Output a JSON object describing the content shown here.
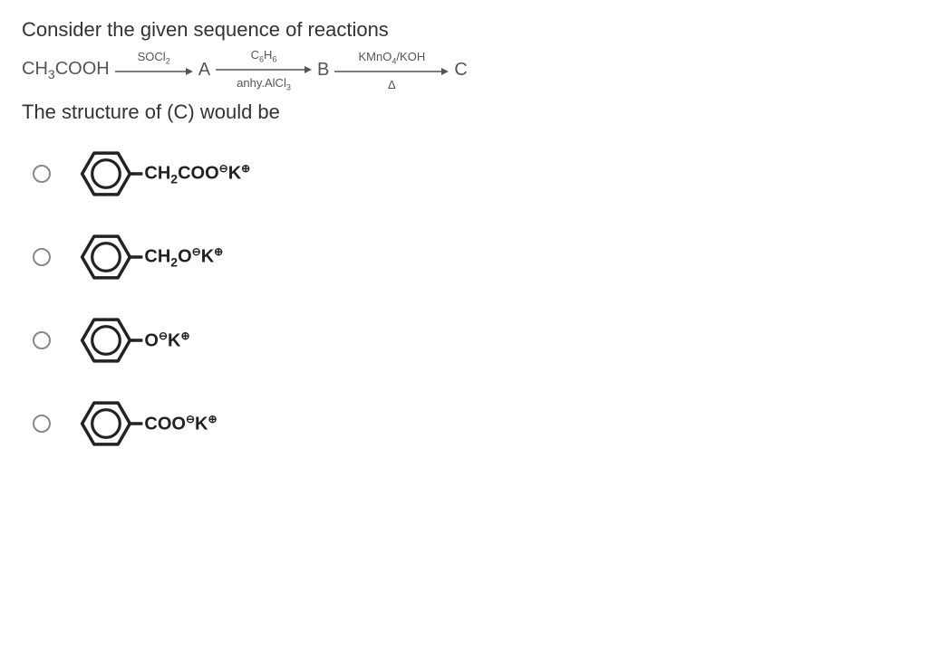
{
  "question": {
    "prompt_line1": "Consider the given sequence of reactions",
    "prompt_line2": "The structure of (C) would be"
  },
  "reaction": {
    "start_formula_html": "CH<span class='sub'>3</span>COOH",
    "steps": [
      {
        "top_html": "SOCl<span class='sub'>2</span>",
        "bottom_html": "",
        "product": "A",
        "arrow_width": 90
      },
      {
        "top_html": "C<span class='sub'>6</span>H<span class='sub'>6</span>",
        "bottom_html": "anhy.AlCl<span class='sub'>3</span>",
        "product": "B",
        "arrow_width": 110
      },
      {
        "top_html": "KMnO<span class='sub'>4</span>/KOH",
        "bottom_html": "Δ",
        "product": "C",
        "arrow_width": 130
      }
    ]
  },
  "benzene_style": {
    "size": 66,
    "hex_stroke": "#222222",
    "hex_stroke_width": 3.5,
    "circle_stroke": "#222222",
    "circle_stroke_width": 3.2,
    "bond_length": 14
  },
  "options": [
    {
      "substituent_html": "CH<span class='sub'>2</span>COO<span class='sup'>⊖</span>K<span class='sup'>⊕</span>"
    },
    {
      "substituent_html": "CH<span class='sub'>2</span>O<span class='sup'>⊖</span>K<span class='sup'>⊕</span>"
    },
    {
      "substituent_html": "O<span class='sup'>⊖</span>K<span class='sup'>⊕</span>"
    },
    {
      "substituent_html": "COO<span class='sup'>⊖</span>K<span class='sup'>⊕</span>"
    }
  ],
  "colors": {
    "text": "#333333",
    "reaction_text": "#555555",
    "radio_border": "#888888",
    "background": "#ffffff"
  },
  "typography": {
    "question_fontsize": 22,
    "reaction_fontsize": 18,
    "substituent_fontsize": 20
  }
}
